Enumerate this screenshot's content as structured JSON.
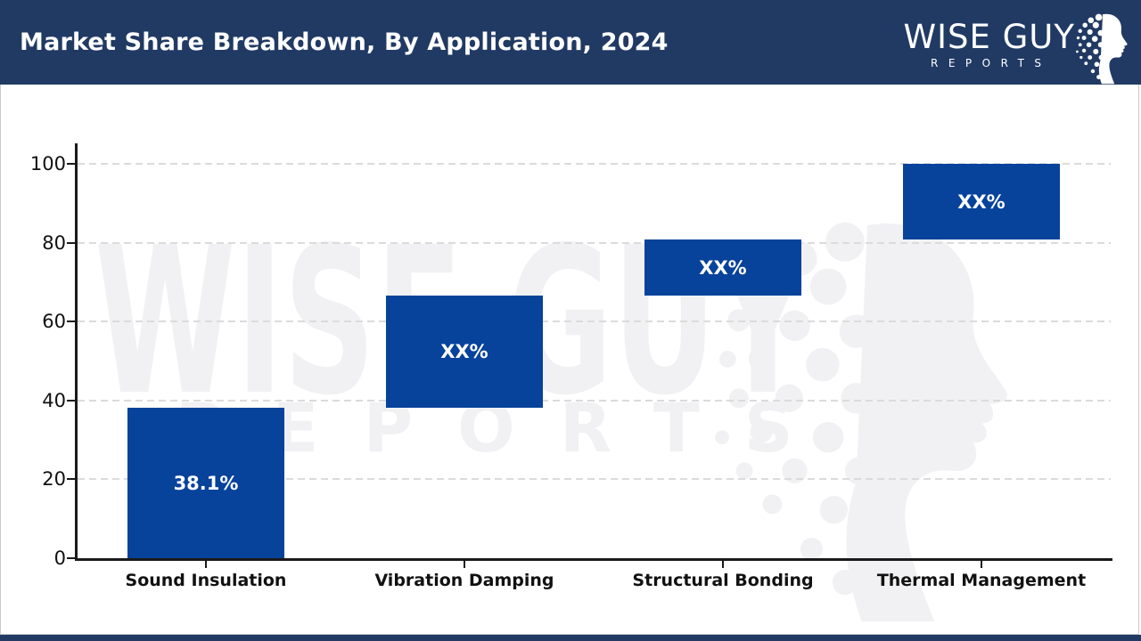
{
  "header": {
    "title": "Market Share Breakdown, By Application, 2024",
    "brand_line1": "WISE GUY",
    "brand_line2": "REPORTS",
    "bg_color": "#213a64"
  },
  "watermark": {
    "line1": "WISE GUY",
    "line2": "REPORTS"
  },
  "chart_data": {
    "type": "bar",
    "subtype": "waterfall-floating-bars",
    "title": "Market Share Breakdown, By Application, 2024",
    "categories": [
      "Sound Insulation",
      "Vibration Damping",
      "Structural Bonding",
      "Thermal Management"
    ],
    "segments": [
      {
        "category": "Sound Insulation",
        "start": 0,
        "end": 38.1,
        "label": "38.1%"
      },
      {
        "category": "Vibration Damping",
        "start": 38.1,
        "end": 66.6,
        "label": "XX%"
      },
      {
        "category": "Structural Bonding",
        "start": 66.6,
        "end": 80.8,
        "label": "XX%"
      },
      {
        "category": "Thermal Management",
        "start": 80.8,
        "end": 100,
        "label": "XX%"
      }
    ],
    "y_ticks": [
      0,
      20,
      40,
      60,
      80,
      100
    ],
    "ylim": [
      0,
      100
    ],
    "xlabel": "",
    "ylabel": "",
    "grid": "horizontal-dashed",
    "legend": "none",
    "bar_color": "#07429b",
    "axis_color": "#1a1a1a",
    "gridline_color": "#dbdbdb"
  }
}
